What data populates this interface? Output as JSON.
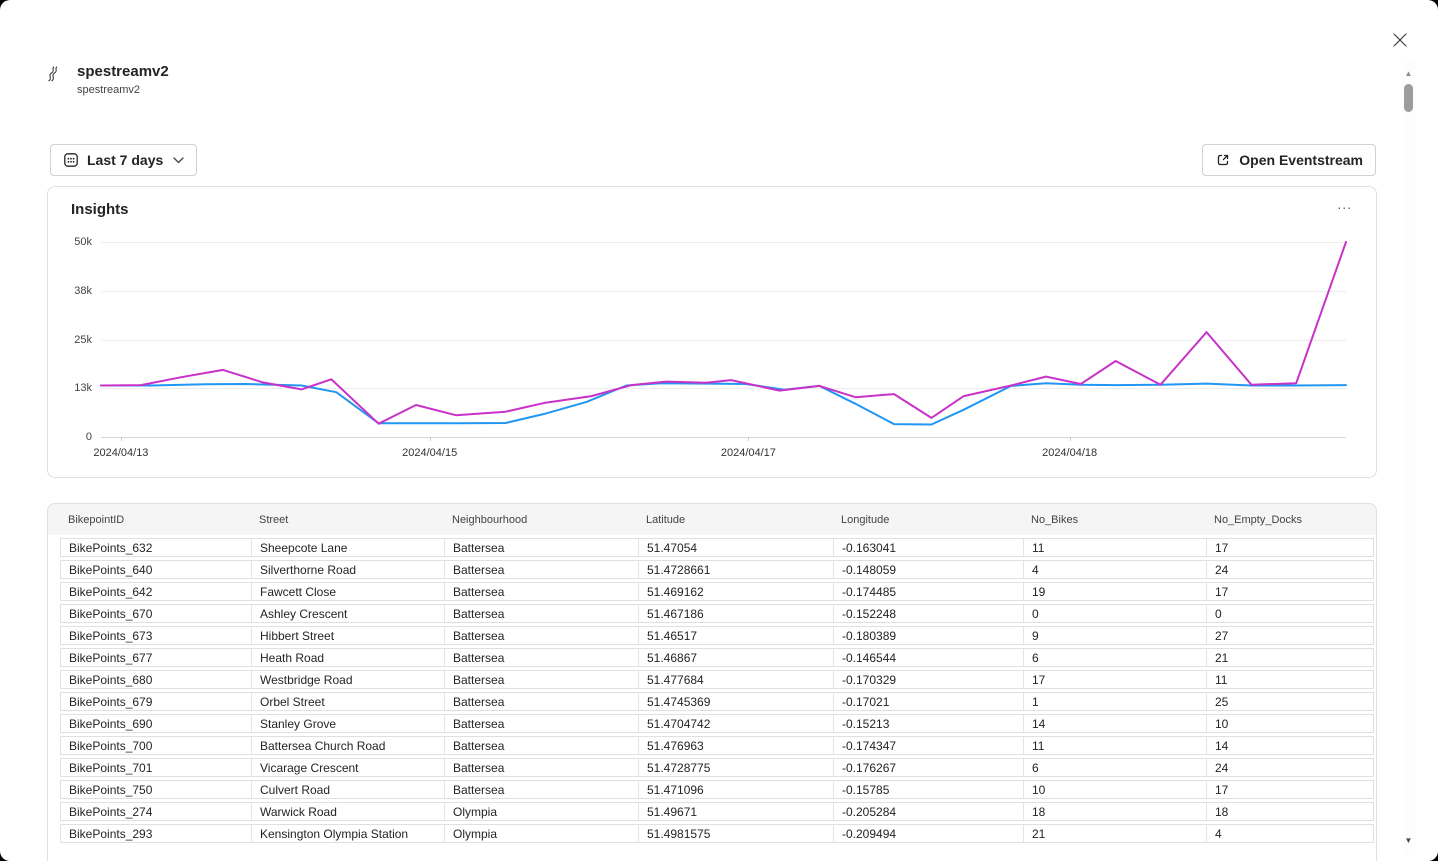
{
  "header": {
    "title": "spestreamv2",
    "subtitle": "spestreamv2"
  },
  "toolbar": {
    "time_range": {
      "label": "Last 7 days",
      "icon": "calendar-icon"
    },
    "open_eventstream": {
      "label": "Open Eventstream",
      "icon": "open-external-icon"
    }
  },
  "insights": {
    "title": "Insights",
    "more_label": "..."
  },
  "chart_data": {
    "type": "line",
    "title": "Insights",
    "xlabel": "",
    "ylabel": "",
    "ylim": [
      0,
      50000
    ],
    "grid": true,
    "legend": "none",
    "y_ticks": [
      {
        "label": "50k",
        "pos": 0
      },
      {
        "label": "38k",
        "pos": 25
      },
      {
        "label": "25k",
        "pos": 50
      },
      {
        "label": "13k",
        "pos": 75
      },
      {
        "label": "0",
        "pos": 100
      }
    ],
    "x_ticks": [
      {
        "label": "2024/04/13",
        "pos": 1.6
      },
      {
        "label": "2024/04/15",
        "pos": 26.4
      },
      {
        "label": "2024/04/17",
        "pos": 52.0
      },
      {
        "label": "2024/04/18",
        "pos": 77.8
      }
    ],
    "series": [
      {
        "name": "series-blue",
        "color": "#2196f3",
        "points": [
          {
            "x": 0,
            "v": 13200
          },
          {
            "x": 4,
            "v": 13200
          },
          {
            "x": 8.4,
            "v": 13500
          },
          {
            "x": 11.6,
            "v": 13600
          },
          {
            "x": 16.1,
            "v": 13200
          },
          {
            "x": 18.9,
            "v": 11500
          },
          {
            "x": 22.3,
            "v": 3500
          },
          {
            "x": 25.7,
            "v": 3500
          },
          {
            "x": 28.9,
            "v": 3500
          },
          {
            "x": 32.5,
            "v": 3600
          },
          {
            "x": 35.7,
            "v": 6000
          },
          {
            "x": 39,
            "v": 9000
          },
          {
            "x": 42.2,
            "v": 13200
          },
          {
            "x": 45,
            "v": 13800
          },
          {
            "x": 48.6,
            "v": 13700
          },
          {
            "x": 51.8,
            "v": 13600
          },
          {
            "x": 54.9,
            "v": 12100
          },
          {
            "x": 57.7,
            "v": 13100
          },
          {
            "x": 60.6,
            "v": 8500
          },
          {
            "x": 63.7,
            "v": 3300
          },
          {
            "x": 66.7,
            "v": 3200
          },
          {
            "x": 69.3,
            "v": 7000
          },
          {
            "x": 73.1,
            "v": 13100
          },
          {
            "x": 75.9,
            "v": 13800
          },
          {
            "x": 78.7,
            "v": 13400
          },
          {
            "x": 81.5,
            "v": 13300
          },
          {
            "x": 85.1,
            "v": 13400
          },
          {
            "x": 88.8,
            "v": 13700
          },
          {
            "x": 92.4,
            "v": 13200
          },
          {
            "x": 95.6,
            "v": 13200
          },
          {
            "x": 100,
            "v": 13300
          }
        ]
      },
      {
        "name": "series-magenta",
        "color": "#c832c8",
        "points": [
          {
            "x": 0,
            "v": 13200
          },
          {
            "x": 3.2,
            "v": 13300
          },
          {
            "x": 6.4,
            "v": 15300
          },
          {
            "x": 9.8,
            "v": 17200
          },
          {
            "x": 13,
            "v": 14000
          },
          {
            "x": 16.1,
            "v": 12200
          },
          {
            "x": 18.5,
            "v": 14800
          },
          {
            "x": 22.3,
            "v": 3400
          },
          {
            "x": 25.3,
            "v": 8200
          },
          {
            "x": 28.5,
            "v": 5600
          },
          {
            "x": 32.5,
            "v": 6500
          },
          {
            "x": 35.7,
            "v": 8800
          },
          {
            "x": 39.4,
            "v": 10500
          },
          {
            "x": 42.6,
            "v": 13300
          },
          {
            "x": 45.4,
            "v": 14200
          },
          {
            "x": 48.6,
            "v": 13900
          },
          {
            "x": 50.6,
            "v": 14600
          },
          {
            "x": 54.5,
            "v": 11900
          },
          {
            "x": 57.7,
            "v": 13100
          },
          {
            "x": 60.6,
            "v": 10200
          },
          {
            "x": 63.7,
            "v": 11000
          },
          {
            "x": 66.7,
            "v": 4900
          },
          {
            "x": 69.3,
            "v": 10500
          },
          {
            "x": 73.1,
            "v": 13200
          },
          {
            "x": 75.9,
            "v": 15500
          },
          {
            "x": 78.7,
            "v": 13600
          },
          {
            "x": 81.5,
            "v": 19500
          },
          {
            "x": 85.1,
            "v": 13400
          },
          {
            "x": 88.8,
            "v": 26900
          },
          {
            "x": 92.4,
            "v": 13400
          },
          {
            "x": 96,
            "v": 13800
          },
          {
            "x": 100,
            "v": 50000
          }
        ]
      }
    ]
  },
  "table": {
    "columns": [
      "BikepointID",
      "Street",
      "Neighbourhood",
      "Latitude",
      "Longitude",
      "No_Bikes",
      "No_Empty_Docks"
    ],
    "rows": [
      [
        "BikePoints_632",
        "Sheepcote Lane",
        "Battersea",
        "51.47054",
        "-0.163041",
        "11",
        "17"
      ],
      [
        "BikePoints_640",
        "Silverthorne Road",
        "Battersea",
        "51.4728661",
        "-0.148059",
        "4",
        "24"
      ],
      [
        "BikePoints_642",
        "Fawcett Close",
        "Battersea",
        "51.469162",
        "-0.174485",
        "19",
        "17"
      ],
      [
        "BikePoints_670",
        "Ashley Crescent",
        "Battersea",
        "51.467186",
        "-0.152248",
        "0",
        "0"
      ],
      [
        "BikePoints_673",
        "Hibbert Street",
        "Battersea",
        "51.46517",
        "-0.180389",
        "9",
        "27"
      ],
      [
        "BikePoints_677",
        "Heath Road",
        "Battersea",
        "51.46867",
        "-0.146544",
        "6",
        "21"
      ],
      [
        "BikePoints_680",
        "Westbridge Road",
        "Battersea",
        "51.477684",
        "-0.170329",
        "17",
        "11"
      ],
      [
        "BikePoints_679",
        "Orbel Street",
        "Battersea",
        "51.4745369",
        "-0.17021",
        "1",
        "25"
      ],
      [
        "BikePoints_690",
        "Stanley Grove",
        "Battersea",
        "51.4704742",
        "-0.15213",
        "14",
        "10"
      ],
      [
        "BikePoints_700",
        "Battersea Church Road",
        "Battersea",
        "51.476963",
        "-0.174347",
        "11",
        "14"
      ],
      [
        "BikePoints_701",
        "Vicarage Crescent",
        "Battersea",
        "51.4728775",
        "-0.176267",
        "6",
        "24"
      ],
      [
        "BikePoints_750",
        "Culvert Road",
        "Battersea",
        "51.471096",
        "-0.15785",
        "10",
        "17"
      ],
      [
        "BikePoints_274",
        "Warwick Road",
        "Olympia",
        "51.49671",
        "-0.205284",
        "18",
        "18"
      ],
      [
        "BikePoints_293",
        "Kensington Olympia Station",
        "Olympia",
        "51.4981575",
        "-0.209494",
        "21",
        "4"
      ]
    ]
  },
  "colors": {
    "series_blue": "#2196f3",
    "series_magenta": "#c832c8",
    "card_border": "#e0e0e0",
    "table_header_bg": "#f5f5f5"
  }
}
